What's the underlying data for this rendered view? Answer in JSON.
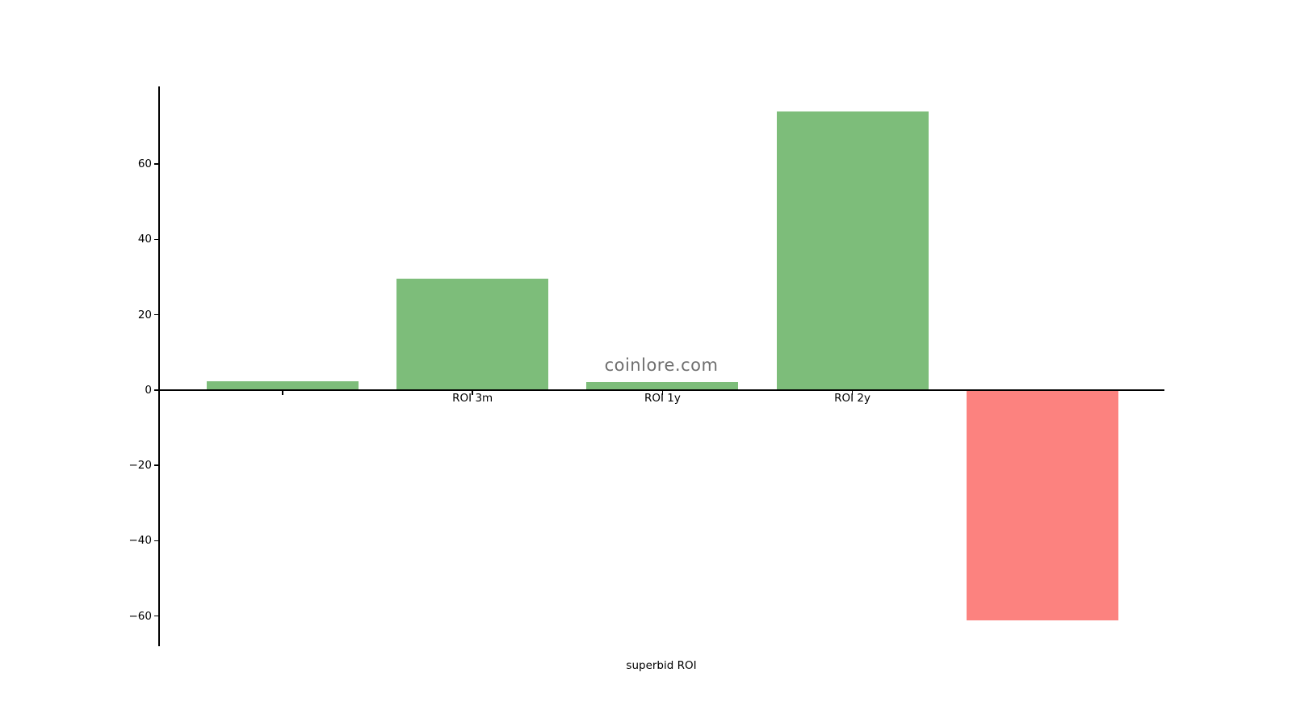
{
  "watermark": "coinlore.com",
  "chart_data": {
    "type": "bar",
    "title": "superbid ROI",
    "categories": [
      "",
      "ROI 3m",
      "ROI 1y",
      "ROI 2y",
      ""
    ],
    "values": [
      2.3,
      29.5,
      2.2,
      73.9,
      -61.1
    ],
    "series": [
      {
        "name": "superbid ROI %",
        "values": [
          2.3,
          29.5,
          2.2,
          73.9,
          -61.1
        ]
      }
    ],
    "xlabel": "",
    "ylabel": "",
    "ylim": [
      -68,
      80.6
    ],
    "y_ticks": [
      {
        "value": 60,
        "label": "60"
      },
      {
        "value": 40,
        "label": "40"
      },
      {
        "value": 20,
        "label": "20"
      },
      {
        "value": 0,
        "label": "0"
      },
      {
        "value": -20,
        "label": "−20"
      },
      {
        "value": -40,
        "label": "−40"
      },
      {
        "value": -60,
        "label": "−60"
      }
    ],
    "x_tick_indices": [
      0,
      1,
      2,
      3
    ],
    "grid": false,
    "legend": null,
    "positive_color": "#7dbd7a",
    "negative_color": "#fc827f"
  },
  "colors": {
    "axis": "#000000",
    "watermark": "#6e6e6e",
    "text": "#000000",
    "background": "#ffffff"
  }
}
